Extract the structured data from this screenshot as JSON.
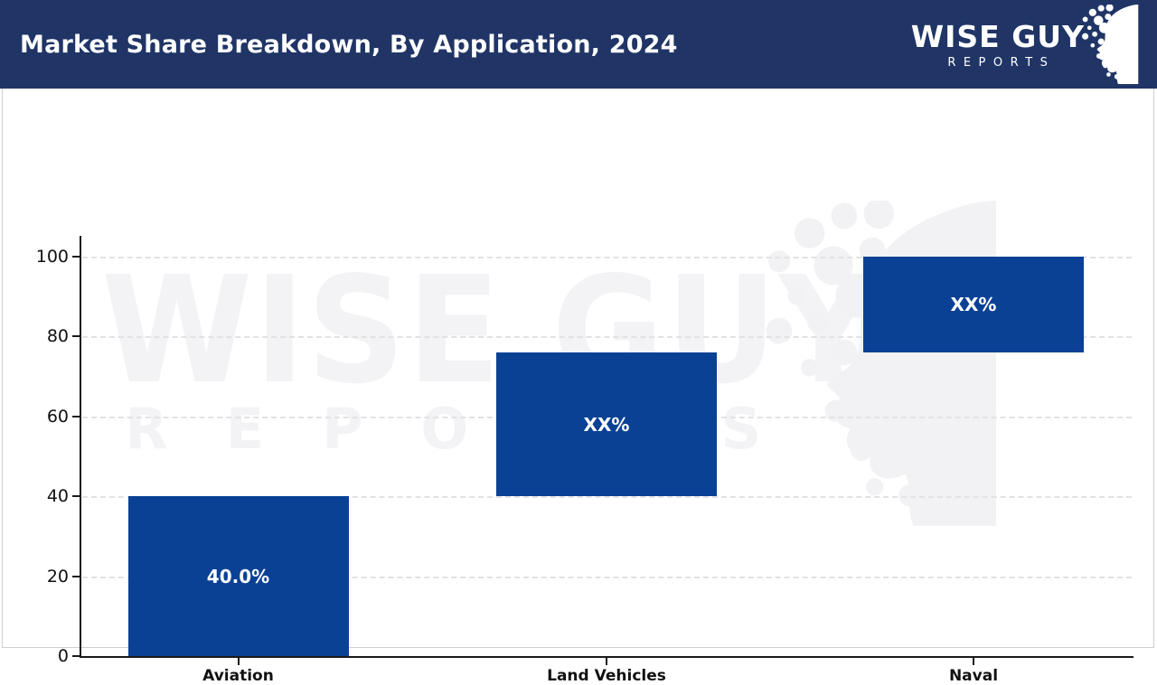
{
  "header": {
    "title": "Market Share Breakdown, By Application, 2024",
    "brand": {
      "name": "WISE GUY",
      "sub": "REPORTS"
    }
  },
  "watermark": {
    "text": "WISE GUY",
    "sub": "REPORTS"
  },
  "chart_data": {
    "type": "bar",
    "subtype": "waterfall",
    "title": "Market Share Breakdown, By Application, 2024",
    "categories": [
      "Aviation",
      "Land Vehicles",
      "Naval"
    ],
    "segments": [
      {
        "category": "Aviation",
        "start": 0,
        "end": 40,
        "value": 40,
        "label": "40.0%"
      },
      {
        "category": "Land Vehicles",
        "start": 40,
        "end": 76,
        "value": 36,
        "label": "XX%"
      },
      {
        "category": "Naval",
        "start": 76,
        "end": 100,
        "value": 24,
        "label": "XX%"
      }
    ],
    "xlabel": "",
    "ylabel": "",
    "ylim": [
      0,
      105
    ],
    "yticks": [
      0,
      20,
      40,
      60,
      80,
      100
    ],
    "grid": "horizontal-dashed",
    "legend": null,
    "colors": {
      "bar": "#0b4195",
      "bar_label": "#ffffff",
      "grid": "#e2e2e2",
      "axis": "#1a1a1a",
      "header_bg": "#203566",
      "header_text": "#ffffff",
      "watermark": "#f3f3f5"
    }
  }
}
